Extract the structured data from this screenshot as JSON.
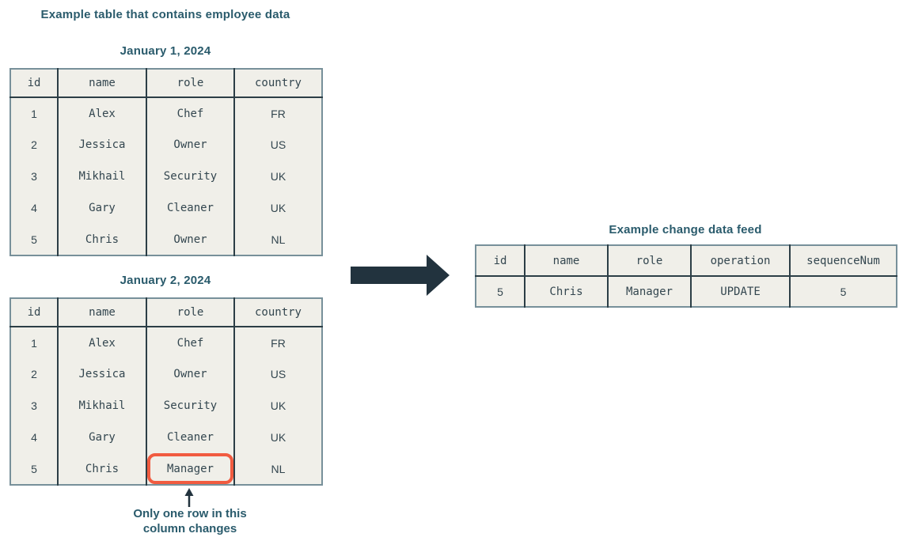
{
  "main_title": "Example table that contains employee data",
  "tables": {
    "jan1": {
      "title": "January 1, 2024",
      "columns": [
        "id",
        "name",
        "role",
        "country"
      ],
      "rows": [
        [
          "1",
          "Alex",
          "Chef",
          "FR"
        ],
        [
          "2",
          "Jessica",
          "Owner",
          "US"
        ],
        [
          "3",
          "Mikhail",
          "Security",
          "UK"
        ],
        [
          "4",
          "Gary",
          "Cleaner",
          "UK"
        ],
        [
          "5",
          "Chris",
          "Owner",
          "NL"
        ]
      ]
    },
    "jan2": {
      "title": "January 2, 2024",
      "columns": [
        "id",
        "name",
        "role",
        "country"
      ],
      "rows": [
        [
          "1",
          "Alex",
          "Chef",
          "FR"
        ],
        [
          "2",
          "Jessica",
          "Owner",
          "US"
        ],
        [
          "3",
          "Mikhail",
          "Security",
          "UK"
        ],
        [
          "4",
          "Gary",
          "Cleaner",
          "UK"
        ],
        [
          "5",
          "Chris",
          "Manager",
          "NL"
        ]
      ]
    },
    "feed": {
      "title": "Example change data feed",
      "columns": [
        "id",
        "name",
        "role",
        "operation",
        "sequenceNum"
      ],
      "rows": [
        [
          "5",
          "Chris",
          "Manager",
          "UPDATE",
          "5"
        ]
      ]
    }
  },
  "highlight_marker": {
    "table": "jan2",
    "row": 4,
    "col": 2,
    "highlighted_value": "Manager"
  },
  "annotation": {
    "line1": "Only one row in this",
    "line2": "column changes"
  },
  "colors": {
    "title": "#2a5b6c",
    "ink": "#33464f",
    "cell_bg": "#f0efe9",
    "table_border": "#77909a",
    "grid_line": "#2c3e46",
    "highlight": "#f15b40",
    "arrow": "#22333e",
    "background": "#ffffff"
  }
}
